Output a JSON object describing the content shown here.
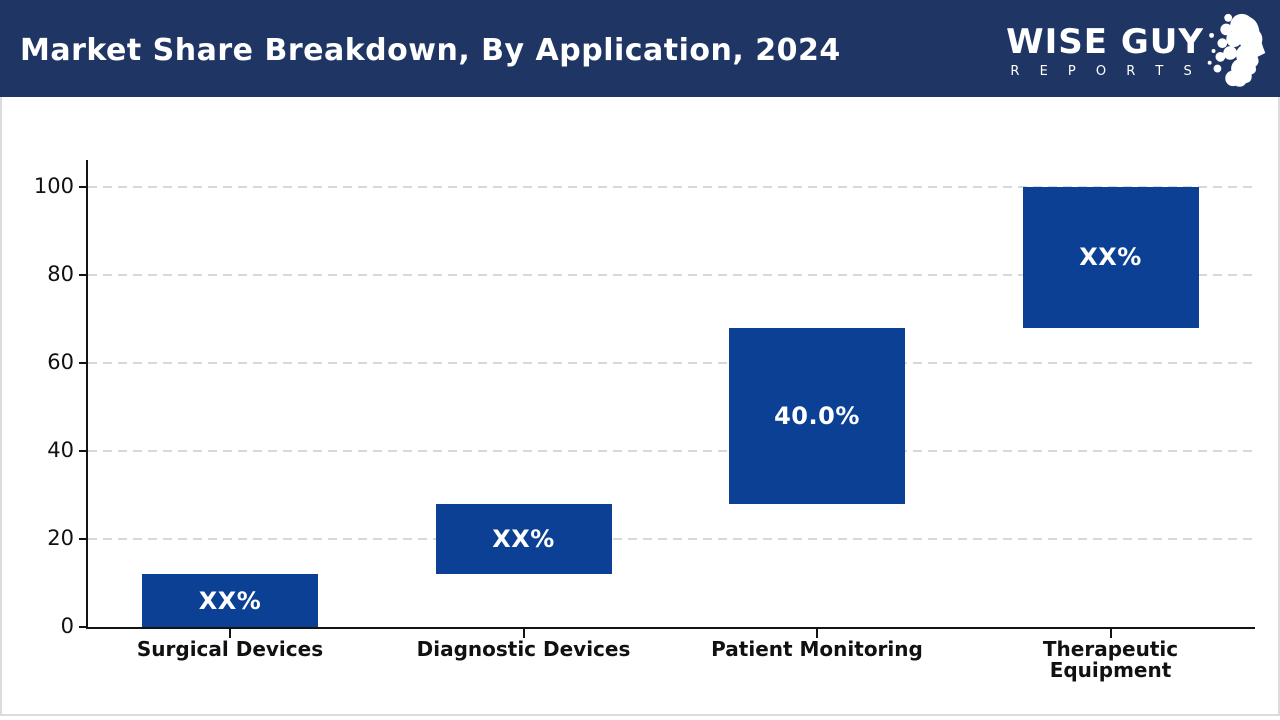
{
  "header": {
    "title": "Market Share Breakdown, By Application, 2024",
    "logo": {
      "line1": "WISE GUY",
      "line2": "R E P O R T S"
    }
  },
  "watermark": {
    "line1": "WISE GUY",
    "line2": "R E P O R T S"
  },
  "chart_data": {
    "type": "bar",
    "subtype": "floating-cumulative-bars",
    "title": "Market Share Breakdown, By Application, 2024",
    "categories": [
      "Surgical Devices",
      "Diagnostic Devices",
      "Patient Monitoring",
      "Therapeutic\nEquipment"
    ],
    "bars": [
      {
        "category": "Surgical Devices",
        "start": 0,
        "end": 12,
        "label": "XX%"
      },
      {
        "category": "Diagnostic Devices",
        "start": 12,
        "end": 28,
        "label": "XX%"
      },
      {
        "category": "Patient Monitoring",
        "start": 28,
        "end": 68,
        "label": "40.0%"
      },
      {
        "category": "Therapeutic Equipment",
        "start": 68,
        "end": 100,
        "label": "XX%"
      }
    ],
    "yticks": [
      0,
      20,
      40,
      60,
      80,
      100
    ],
    "ylim": [
      0,
      106
    ],
    "xlabel": "",
    "ylabel": "",
    "grid": "horizontal-dashed",
    "legend": "none",
    "bar_color": "#0c4094",
    "bar_label_color": "#ffffff",
    "axis_color": "#141414",
    "grid_color": "#d8d8d8",
    "header_color": "#1f3564"
  }
}
